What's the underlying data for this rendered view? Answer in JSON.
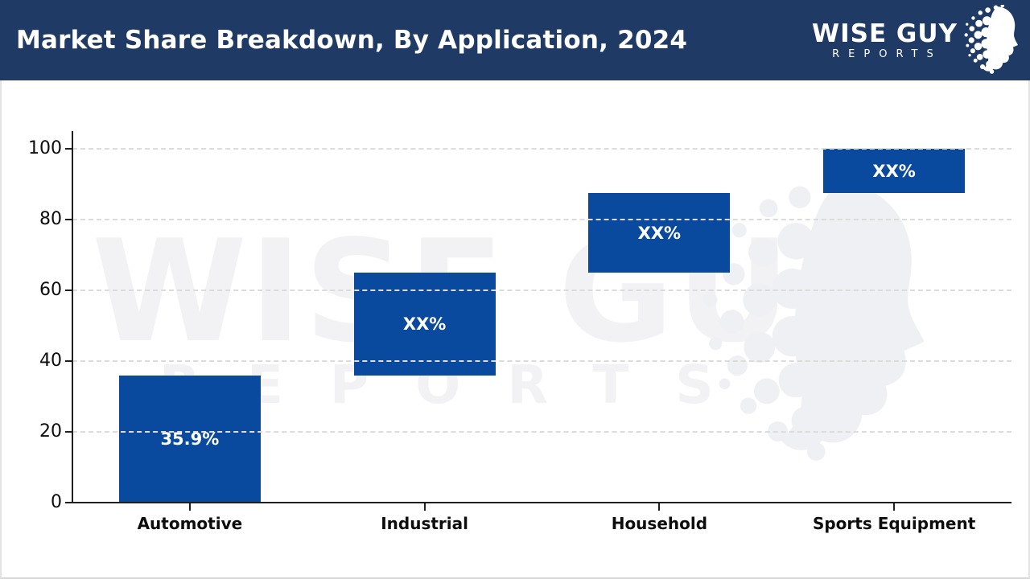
{
  "header": {
    "title": "Market Share Breakdown, By Application, 2024",
    "logo": {
      "line1": "WISE GUY",
      "line2": "REPORTS"
    }
  },
  "watermark": {
    "line1": "WISE GUY",
    "line2": "REPORTS"
  },
  "colors": {
    "header_bg": "#203a66",
    "bar": "#0a4a9e",
    "bar_label": "#ffffff",
    "gridline": "#dcdcdc",
    "axis": "#1f1f1f",
    "watermark": "#f2f2f4"
  },
  "chart_data": {
    "type": "bar",
    "subtype": "floating-waterfall",
    "title": "Market Share Breakdown, By Application, 2024",
    "categories": [
      "Automotive",
      "Industrial",
      "Household",
      "Sports Equipment"
    ],
    "segments": [
      {
        "category": "Automotive",
        "start": 0,
        "end": 35.9,
        "label": "35.9%"
      },
      {
        "category": "Industrial",
        "start": 35.9,
        "end": 64.9,
        "label": "XX%"
      },
      {
        "category": "Household",
        "start": 64.9,
        "end": 87.4,
        "label": "XX%"
      },
      {
        "category": "Sports Equipment",
        "start": 87.4,
        "end": 100,
        "label": "XX%"
      }
    ],
    "xlabel": "",
    "ylabel": "",
    "yticks": [
      0,
      20,
      40,
      60,
      80,
      100
    ],
    "ylim": [
      0,
      105
    ],
    "grid": "horizontal-dashed",
    "legend": "none",
    "bar_color": "#0a4a9e",
    "value_label_color": "#ffffff"
  }
}
